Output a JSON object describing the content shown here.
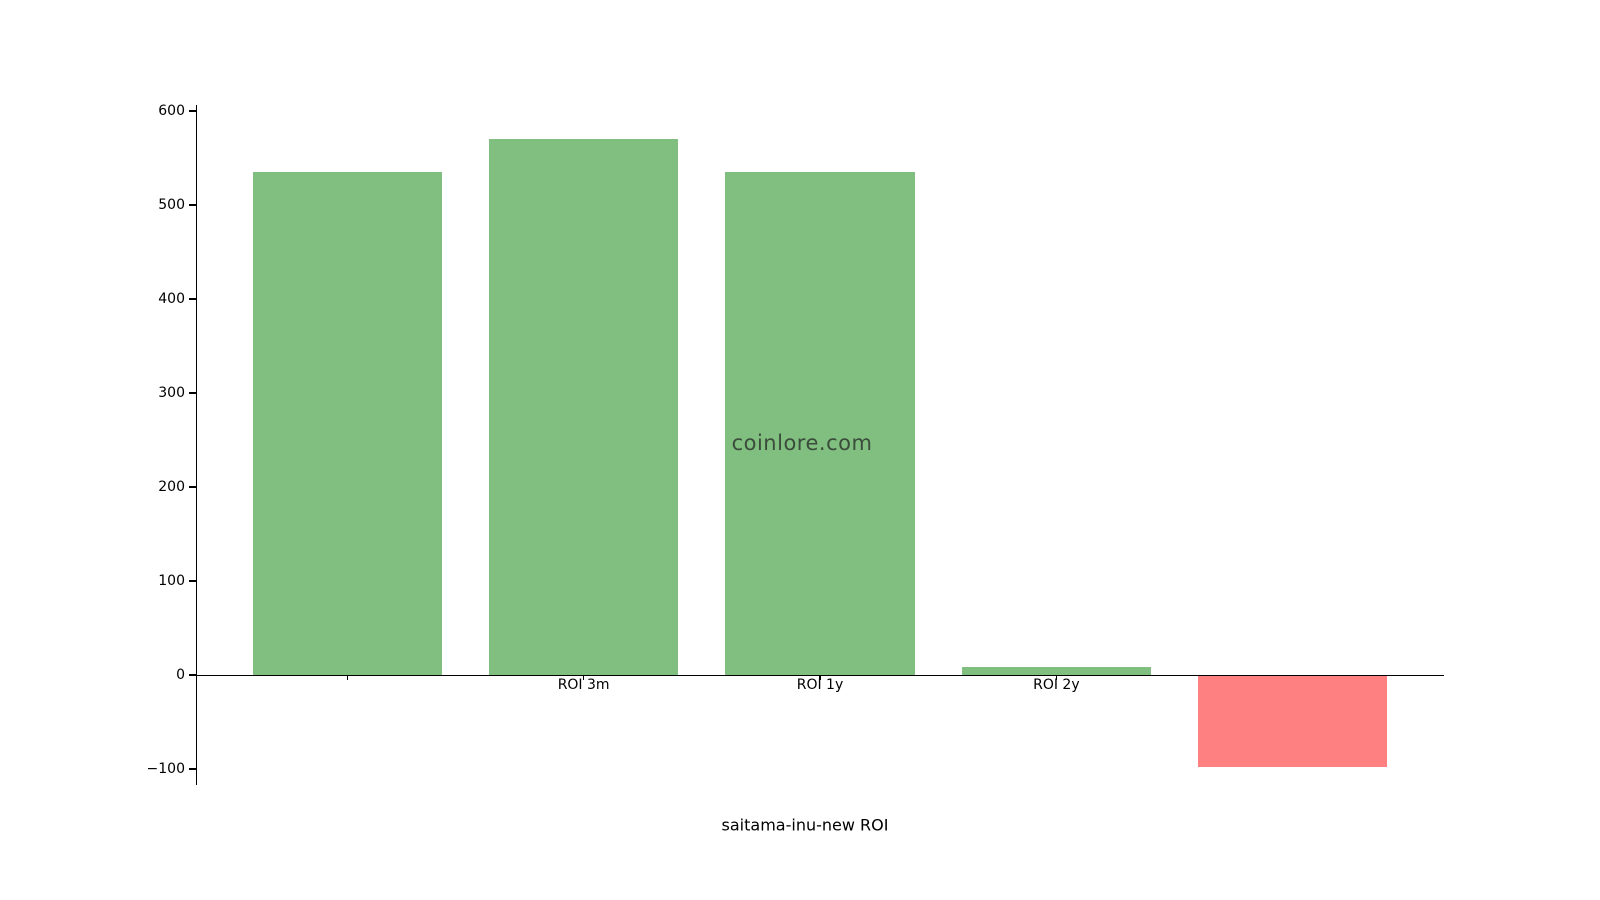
{
  "page": {
    "background": "#ffffff"
  },
  "chart_data": {
    "type": "bar",
    "title": "saitama-inu-new ROI",
    "watermark": "coinlore.com",
    "categories": [
      "",
      "ROI 3m",
      "ROI 1y",
      "ROI 2y",
      ""
    ],
    "values": [
      535,
      570,
      535,
      8,
      -98
    ],
    "bar_colors": [
      "#80bf80",
      "#80bf80",
      "#80bf80",
      "#80bf80",
      "#ff8080"
    ],
    "positive_color": "#80bf80",
    "negative_color": "#ff8080",
    "axis_color": "#000000",
    "text_color": "#000000",
    "xlabel": "",
    "ylabel": "",
    "ylim": [
      -117,
      606
    ],
    "yticks": [
      600,
      500,
      400,
      300,
      200,
      100,
      0,
      -100
    ],
    "ytick_labels": [
      "600",
      "500",
      "400",
      "300",
      "200",
      "100",
      "0",
      "−100"
    ],
    "grid": false,
    "legend": "none"
  }
}
